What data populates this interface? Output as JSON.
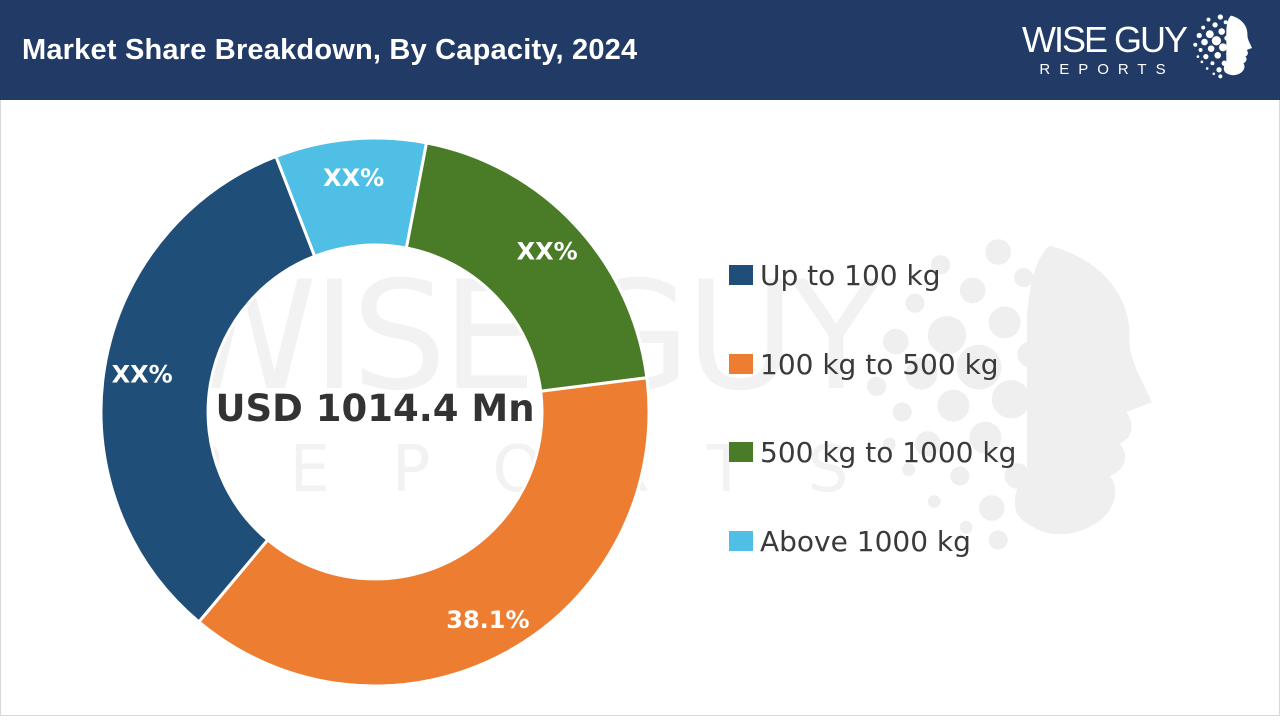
{
  "header": {
    "title": "Market Share Breakdown, By Capacity, 2024",
    "bg_color": "#213a66",
    "logo": {
      "brand": "WISE GUY",
      "sub": "REPORTS"
    }
  },
  "watermark": {
    "brand": "WISE GUY",
    "sub": "REPORTS"
  },
  "chart_data": {
    "type": "pie",
    "subtype": "donut",
    "title": "Market Share Breakdown, By Capacity, 2024",
    "center_label": "USD 1014.4 Mn",
    "start_angle_deg": -21.2,
    "segments": [
      {
        "label": "Above 1000 kg",
        "value_pct": 8.9,
        "display": "XX%",
        "color": "#4fbfe6"
      },
      {
        "label": "500 kg to 1000 kg",
        "value_pct": 20.0,
        "display": "XX%",
        "color": "#4a7c28"
      },
      {
        "label": "100 kg to 500 kg",
        "value_pct": 38.1,
        "display": "38.1%",
        "color": "#ed7d31"
      },
      {
        "label": "Up to 100 kg",
        "value_pct": 33.0,
        "display": "XX%",
        "color": "#1f4e78"
      }
    ],
    "legend": [
      {
        "label": "Up to 100 kg",
        "color": "#1f4e78"
      },
      {
        "label": "100 kg to 500 kg",
        "color": "#ed7d31"
      },
      {
        "label": "500 kg to 1000 kg",
        "color": "#4a7c28"
      },
      {
        "label": "Above 1000 kg",
        "color": "#4fbfe6"
      }
    ],
    "legend_position": "right"
  }
}
